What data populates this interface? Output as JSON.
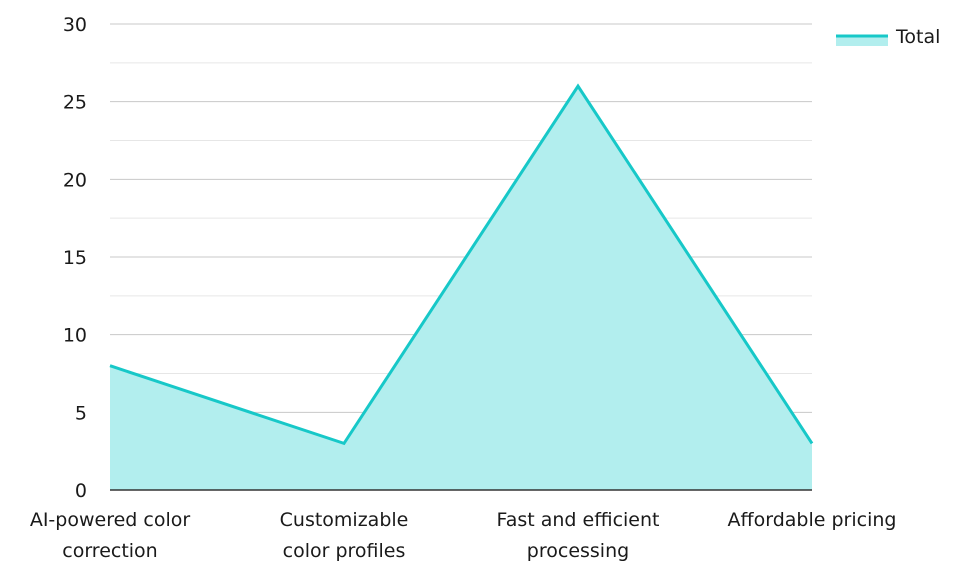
{
  "chart_data": {
    "type": "area",
    "categories": [
      [
        "AI-powered color",
        "correction"
      ],
      [
        "Customizable",
        "color profiles"
      ],
      [
        "Fast and efficient",
        "processing"
      ],
      [
        "Affordable pricing"
      ]
    ],
    "series": [
      {
        "name": "Total",
        "values": [
          8,
          3,
          26,
          3
        ]
      }
    ],
    "ylim": [
      0,
      30
    ],
    "yticks": [
      0,
      5,
      10,
      15,
      20,
      25,
      30
    ],
    "grid": true,
    "legend": "top-right",
    "colors": {
      "line": "#17C8C8",
      "fill": "#B2EEEE",
      "grid_major": "#c8c8c8",
      "grid_minor": "#e6e6e6",
      "axis": "#333333"
    }
  }
}
